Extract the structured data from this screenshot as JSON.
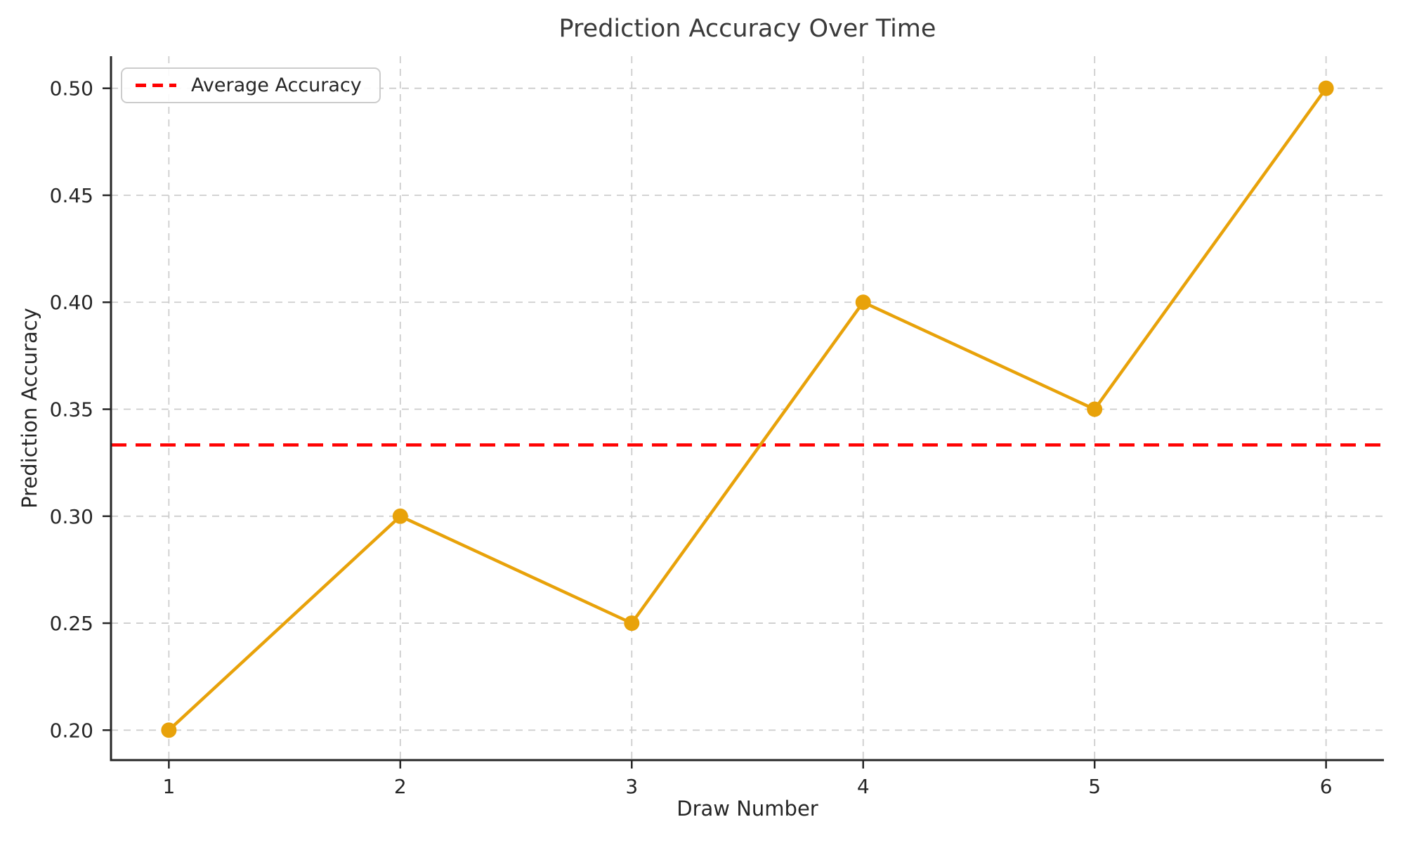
{
  "chart_data": {
    "type": "line",
    "title": "Prediction Accuracy Over Time",
    "xlabel": "Draw Number",
    "ylabel": "Prediction Accuracy",
    "x": [
      1,
      2,
      3,
      4,
      5,
      6
    ],
    "series": [
      {
        "name": "Prediction Accuracy",
        "values": [
          0.2,
          0.3,
          0.25,
          0.4,
          0.35,
          0.5
        ],
        "color": "#E8A20A",
        "marker": "circle"
      }
    ],
    "reference_lines": [
      {
        "name": "Average Accuracy",
        "value": 0.3333,
        "color": "#FF0000",
        "style": "dashed"
      }
    ],
    "legend": {
      "label": "Average Accuracy",
      "position": "upper left"
    },
    "xlim": [
      0.75,
      6.25
    ],
    "ylim": [
      0.186,
      0.515
    ],
    "xticks": [
      1,
      2,
      3,
      4,
      5,
      6
    ],
    "xtick_labels": [
      "1",
      "2",
      "3",
      "4",
      "5",
      "6"
    ],
    "yticks": [
      0.2,
      0.25,
      0.3,
      0.35,
      0.4,
      0.45,
      0.5
    ],
    "ytick_labels": [
      "0.20",
      "0.25",
      "0.30",
      "0.35",
      "0.40",
      "0.45",
      "0.50"
    ],
    "grid": true,
    "grid_style": "dashed",
    "colors": {
      "grid": "#CDCDCD",
      "spine": "#262626",
      "tick_text": "#262626",
      "title_text": "#3A3A3A"
    }
  }
}
